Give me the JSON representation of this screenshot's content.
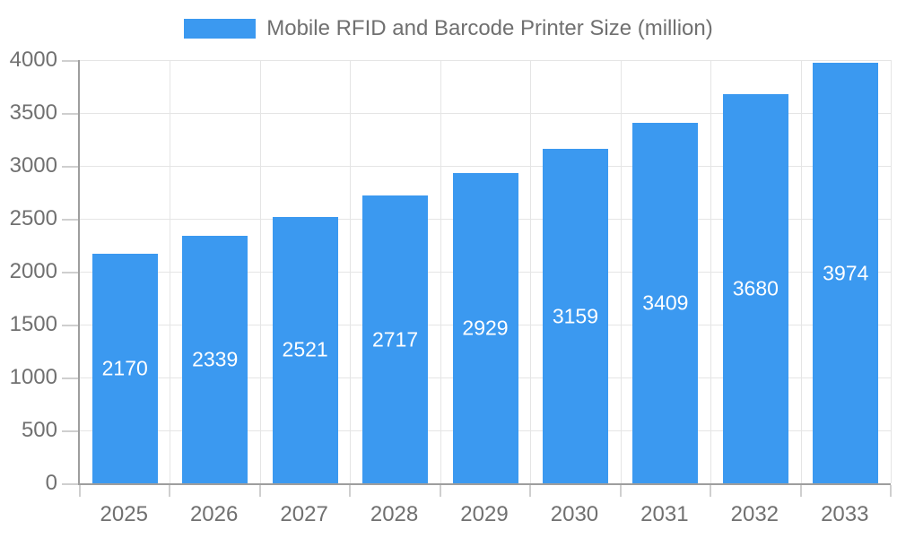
{
  "chart_data": {
    "type": "bar",
    "title": "Mobile RFID and Barcode Printer Size (million)",
    "legend": [
      {
        "label": "Mobile RFID and Barcode Printer Size (million)"
      }
    ],
    "legend_position": "top-center",
    "categories": [
      "2025",
      "2026",
      "2027",
      "2028",
      "2029",
      "2030",
      "2031",
      "2032",
      "2033"
    ],
    "values": [
      2170,
      2339,
      2521,
      2717,
      2929,
      3159,
      3409,
      3680,
      3974
    ],
    "value_labels_shown": true,
    "xlabel": "",
    "ylabel": "",
    "ylim": [
      0,
      4000
    ],
    "yticks": [
      0,
      500,
      1000,
      1500,
      2000,
      2500,
      3000,
      3500,
      4000
    ],
    "grid": true,
    "colors": {
      "bar": "#3B99F0",
      "value_label": "#ffffff",
      "axis_text": "#707070",
      "gridline": "#e5e5e5",
      "axis_line": "#9e9e9e",
      "tick": "#cfcfcf",
      "background": "#ffffff"
    }
  }
}
